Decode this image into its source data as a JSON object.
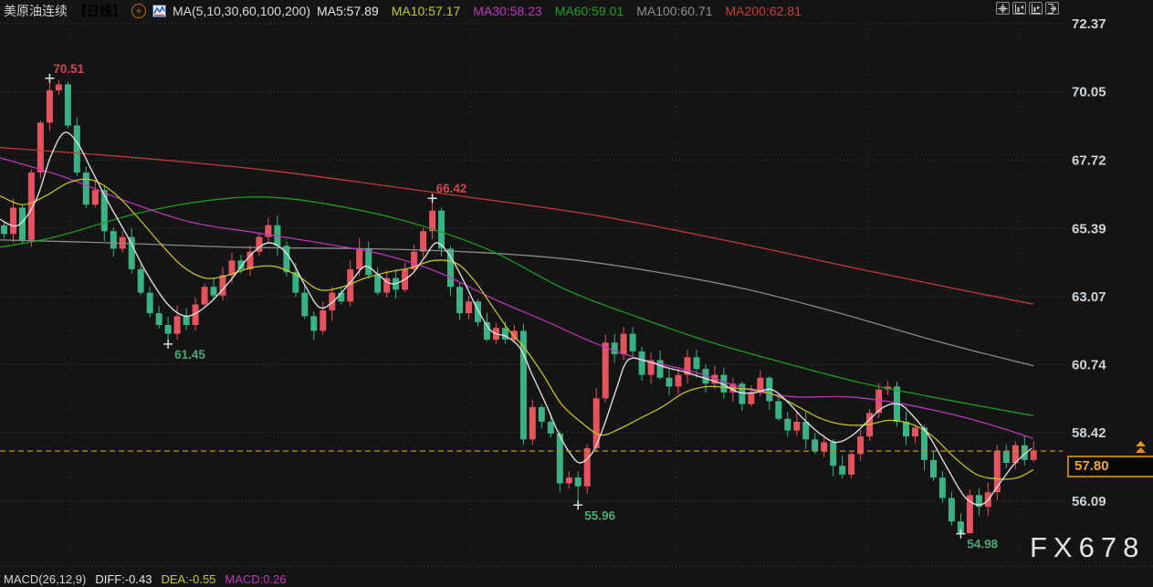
{
  "header": {
    "symbol": "美原油连续",
    "period": "【日线】",
    "add_icon_glyph": "+",
    "ma_param_label": "MA(5,10,30,60,100,200)",
    "ma_values": [
      {
        "text": "MA5:57.89",
        "color": "#e6e6e6"
      },
      {
        "text": "MA10:57.17",
        "color": "#c9c91f"
      },
      {
        "text": "MA30:58.23",
        "color": "#c234c2"
      },
      {
        "text": "MA60:59.01",
        "color": "#1aa21a"
      },
      {
        "text": "MA100:60.71",
        "color": "#8f8f8f"
      },
      {
        "text": "MA200:62.81",
        "color": "#cd3a3a"
      }
    ]
  },
  "toolbar": {
    "buttons": [
      "crosshair-tool",
      "scale-left",
      "play-forward",
      "pop-out"
    ]
  },
  "axis": {
    "labels": [
      "72.37",
      "70.05",
      "67.72",
      "65.39",
      "63.07",
      "60.74",
      "58.42",
      "56.09"
    ],
    "prices": [
      72.37,
      70.05,
      67.72,
      65.39,
      63.07,
      60.74,
      58.42,
      56.09
    ]
  },
  "price_line": {
    "value": 57.8,
    "label": "57.80"
  },
  "watermark": "FX678",
  "footer": {
    "items": [
      {
        "text": "MACD(26,12,9)",
        "color": "#d4d4d4"
      },
      {
        "text": "DIFF:-0.43",
        "color": "#e6e6e6"
      },
      {
        "text": "DEA:-0.55",
        "color": "#c9c91f"
      },
      {
        "text": "MACD:0.26",
        "color": "#c234c2"
      }
    ]
  },
  "colors": {
    "background": "#141414",
    "up": "#e4535e",
    "down": "#3bb283",
    "grid_h": "#3a3f44",
    "grid_v": "#2e3237",
    "axis_text": "#cdd2d6",
    "price_line": "#c98a1e",
    "annotation_high": "#cc4750",
    "annotation_low": "#4aa873",
    "cross": "#dddddd"
  },
  "chart_data": {
    "type": "candlestick",
    "title": "美原油连续 日线 (US Crude Oil Continuous, Daily)",
    "y_axis": {
      "ticks": [
        72.37,
        70.05,
        67.72,
        65.39,
        63.07,
        60.74,
        58.42,
        56.09
      ],
      "tick_step": 2.325,
      "grid": "dotted"
    },
    "current_price": 57.8,
    "open_first": 65.5,
    "closes": [
      65.2,
      66.1,
      65.0,
      67.3,
      69.0,
      70.1,
      70.3,
      68.9,
      67.3,
      66.2,
      66.7,
      65.3,
      64.7,
      65.1,
      64.0,
      63.2,
      62.5,
      62.1,
      61.8,
      62.4,
      62.1,
      62.8,
      63.4,
      63.1,
      63.8,
      64.3,
      64.0,
      64.6,
      65.1,
      65.5,
      64.8,
      63.9,
      63.2,
      62.4,
      61.9,
      62.6,
      63.2,
      62.9,
      64.0,
      64.7,
      63.8,
      63.2,
      63.7,
      63.3,
      64.0,
      64.6,
      65.3,
      66.0,
      64.7,
      63.4,
      62.5,
      62.9,
      62.2,
      61.6,
      62.0,
      61.6,
      61.9,
      58.2,
      59.3,
      58.8,
      58.4,
      56.7,
      56.9,
      56.6,
      57.9,
      59.6,
      61.5,
      61.1,
      61.8,
      61.2,
      60.4,
      60.9,
      60.3,
      60.0,
      60.4,
      61.0,
      60.6,
      60.1,
      60.4,
      59.8,
      60.1,
      59.4,
      59.8,
      60.3,
      59.5,
      58.9,
      58.5,
      58.8,
      58.2,
      57.8,
      58.1,
      57.3,
      57.0,
      57.7,
      58.3,
      59.1,
      59.9,
      60.0,
      58.8,
      58.3,
      58.6,
      57.5,
      56.9,
      56.2,
      55.4,
      55.0,
      56.3,
      55.9,
      56.4,
      57.8,
      57.4,
      58.0,
      57.5,
      57.8
    ],
    "markers": [
      {
        "index": 5,
        "type": "high",
        "value": 70.51,
        "label": "70.51"
      },
      {
        "index": 18,
        "type": "low",
        "value": 61.45,
        "label": "61.45"
      },
      {
        "index": 47,
        "type": "high",
        "value": 66.42,
        "label": "66.42"
      },
      {
        "index": 63,
        "type": "low",
        "value": 55.96,
        "label": "55.96"
      },
      {
        "index": 105,
        "type": "low",
        "value": 54.98,
        "label": "54.98"
      }
    ],
    "ma_lines": {
      "MA200": {
        "color": "#cd3a3a",
        "last": 62.81,
        "points": [
          [
            0,
            68.15
          ],
          [
            150,
            67.8
          ],
          [
            300,
            67.35
          ],
          [
            480,
            66.6
          ],
          [
            650,
            65.85
          ],
          [
            800,
            64.95
          ],
          [
            950,
            63.95
          ],
          [
            1060,
            63.25
          ],
          [
            1132,
            62.81
          ]
        ]
      },
      "MA100": {
        "color": "#8f8f8f",
        "last": 60.71,
        "points": [
          [
            0,
            65.0
          ],
          [
            120,
            64.9
          ],
          [
            260,
            64.75
          ],
          [
            400,
            64.7
          ],
          [
            520,
            64.58
          ],
          [
            620,
            64.35
          ],
          [
            720,
            63.9
          ],
          [
            820,
            63.3
          ],
          [
            920,
            62.5
          ],
          [
            1020,
            61.6
          ],
          [
            1075,
            61.15
          ],
          [
            1132,
            60.71
          ]
        ]
      },
      "MA60": {
        "color": "#1aa21a",
        "last": 59.01,
        "points": [
          [
            0,
            64.75
          ],
          [
            60,
            65.1
          ],
          [
            150,
            65.9
          ],
          [
            230,
            66.35
          ],
          [
            300,
            66.45
          ],
          [
            380,
            66.1
          ],
          [
            460,
            65.5
          ],
          [
            540,
            64.6
          ],
          [
            620,
            63.3
          ],
          [
            700,
            62.35
          ],
          [
            780,
            61.5
          ],
          [
            860,
            60.8
          ],
          [
            940,
            60.15
          ],
          [
            1020,
            59.65
          ],
          [
            1080,
            59.3
          ],
          [
            1132,
            59.01
          ]
        ]
      },
      "MA30": {
        "color": "#c234c2",
        "last": 58.23,
        "points": [
          [
            0,
            67.8
          ],
          [
            70,
            67.15
          ],
          [
            140,
            66.3
          ],
          [
            210,
            65.6
          ],
          [
            280,
            65.25
          ],
          [
            350,
            64.9
          ],
          [
            420,
            64.5
          ],
          [
            480,
            63.9
          ],
          [
            540,
            63.0
          ],
          [
            600,
            62.2
          ],
          [
            650,
            61.5
          ],
          [
            700,
            60.95
          ],
          [
            760,
            60.5
          ],
          [
            820,
            59.9
          ],
          [
            870,
            59.65
          ],
          [
            930,
            59.65
          ],
          [
            990,
            59.4
          ],
          [
            1050,
            59.0
          ],
          [
            1090,
            58.65
          ],
          [
            1132,
            58.23
          ]
        ]
      },
      "MA10": {
        "color": "#c9c91f",
        "last": 57.17,
        "points": [
          [
            0,
            66.5
          ],
          [
            25,
            66.2
          ],
          [
            50,
            66.5
          ],
          [
            75,
            66.95
          ],
          [
            100,
            67.05
          ],
          [
            125,
            66.6
          ],
          [
            150,
            65.8
          ],
          [
            175,
            64.9
          ],
          [
            200,
            64.1
          ],
          [
            225,
            63.7
          ],
          [
            250,
            63.8
          ],
          [
            275,
            64.05
          ],
          [
            300,
            64.1
          ],
          [
            325,
            63.8
          ],
          [
            350,
            63.3
          ],
          [
            375,
            63.4
          ],
          [
            400,
            63.7
          ],
          [
            425,
            63.9
          ],
          [
            450,
            64.05
          ],
          [
            475,
            64.3
          ],
          [
            500,
            64.2
          ],
          [
            520,
            63.6
          ],
          [
            540,
            62.7
          ],
          [
            558,
            61.9
          ],
          [
            575,
            61.3
          ],
          [
            595,
            60.4
          ],
          [
            615,
            59.4
          ],
          [
            638,
            58.75
          ],
          [
            658,
            58.35
          ],
          [
            678,
            58.55
          ],
          [
            700,
            58.9
          ],
          [
            725,
            59.3
          ],
          [
            750,
            59.8
          ],
          [
            775,
            60.0
          ],
          [
            800,
            59.95
          ],
          [
            825,
            59.9
          ],
          [
            850,
            59.7
          ],
          [
            875,
            59.3
          ],
          [
            900,
            58.9
          ],
          [
            925,
            58.7
          ],
          [
            950,
            58.7
          ],
          [
            975,
            58.85
          ],
          [
            1000,
            58.7
          ],
          [
            1022,
            58.3
          ],
          [
            1045,
            57.6
          ],
          [
            1070,
            57.0
          ],
          [
            1095,
            56.85
          ],
          [
            1115,
            56.9
          ],
          [
            1132,
            57.17
          ]
        ]
      },
      "MA5": {
        "color": "#e6e6e6",
        "last": 57.89,
        "points": [
          [
            0,
            65.7
          ],
          [
            20,
            65.5
          ],
          [
            40,
            66.4
          ],
          [
            55,
            67.8
          ],
          [
            70,
            68.65
          ],
          [
            85,
            68.3
          ],
          [
            100,
            67.4
          ],
          [
            120,
            66.2
          ],
          [
            140,
            65.1
          ],
          [
            160,
            63.9
          ],
          [
            184,
            62.8
          ],
          [
            205,
            62.4
          ],
          [
            228,
            62.8
          ],
          [
            252,
            63.6
          ],
          [
            275,
            64.5
          ],
          [
            295,
            64.9
          ],
          [
            315,
            64.5
          ],
          [
            335,
            63.4
          ],
          [
            350,
            62.7
          ],
          [
            365,
            62.9
          ],
          [
            385,
            63.6
          ],
          [
            400,
            64.1
          ],
          [
            415,
            63.8
          ],
          [
            430,
            63.5
          ],
          [
            450,
            63.8
          ],
          [
            465,
            64.4
          ],
          [
            478,
            64.9
          ],
          [
            492,
            64.5
          ],
          [
            508,
            63.6
          ],
          [
            522,
            62.7
          ],
          [
            538,
            61.9
          ],
          [
            555,
            61.7
          ],
          [
            570,
            61.3
          ],
          [
            583,
            60.4
          ],
          [
            598,
            59.4
          ],
          [
            612,
            58.4
          ],
          [
            625,
            57.7
          ],
          [
            636,
            57.4
          ],
          [
            650,
            57.8
          ],
          [
            662,
            58.7
          ],
          [
            675,
            59.9
          ],
          [
            688,
            60.9
          ],
          [
            710,
            60.85
          ],
          [
            730,
            60.65
          ],
          [
            750,
            60.5
          ],
          [
            770,
            60.3
          ],
          [
            790,
            60.1
          ],
          [
            810,
            59.8
          ],
          [
            828,
            59.8
          ],
          [
            845,
            59.9
          ],
          [
            862,
            59.5
          ],
          [
            880,
            58.9
          ],
          [
            898,
            58.4
          ],
          [
            915,
            58.1
          ],
          [
            932,
            58.3
          ],
          [
            950,
            58.8
          ],
          [
            968,
            59.3
          ],
          [
            985,
            59.4
          ],
          [
            1000,
            59.0
          ],
          [
            1018,
            58.3
          ],
          [
            1038,
            57.2
          ],
          [
            1058,
            56.2
          ],
          [
            1077,
            56.0
          ],
          [
            1095,
            56.7
          ],
          [
            1112,
            57.4
          ],
          [
            1130,
            57.89
          ]
        ]
      }
    }
  }
}
